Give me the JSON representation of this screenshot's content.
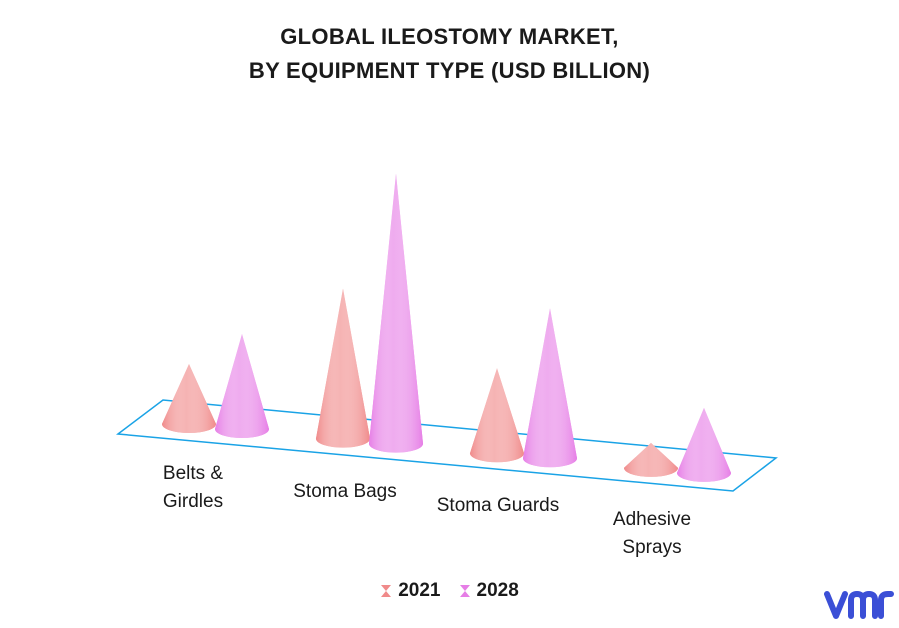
{
  "chart_data": {
    "type": "bar",
    "style": "3d-cone",
    "title_lines": [
      "GLOBAL ILEOSTOMY MARKET,",
      "BY EQUIPMENT TYPE (USD BILLION)"
    ],
    "categories": [
      [
        "Belts &",
        "Girdles"
      ],
      [
        "Stoma Bags"
      ],
      [
        "Stoma Guards"
      ],
      [
        "Adhesive",
        "Sprays"
      ]
    ],
    "series": [
      {
        "name": "2021",
        "values": [
          0.6,
          1.5,
          0.85,
          0.25
        ],
        "color": "#f08a8a"
      },
      {
        "name": "2028",
        "values": [
          0.95,
          2.7,
          1.5,
          0.65
        ],
        "color": "#e67ee6"
      }
    ],
    "ylim": [
      0,
      2.7
    ],
    "grid": false,
    "legend_position": "bottom",
    "axis_color": "#1aa3e6"
  },
  "brand": {
    "logo_text": "vmr",
    "logo_color": "#3b4fd6"
  }
}
